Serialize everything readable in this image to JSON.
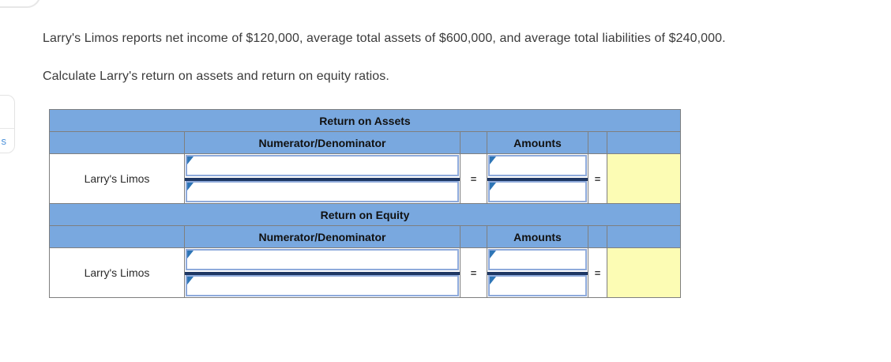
{
  "problem": {
    "line1": "Larry's Limos reports net income of $120,000, average total assets of $600,000, and average total liabilities of $240,000.",
    "line2": "Calculate Larry's return on assets and return on equity ratios."
  },
  "side_panel": {
    "visible_label": "s"
  },
  "worksheet": {
    "equals_sign": "=",
    "sections": [
      {
        "title": "Return on Assets",
        "header_numerator": "Numerator/Denominator",
        "header_amounts": "Amounts",
        "row_label": "Larry's Limos"
      },
      {
        "title": "Return on Equity",
        "header_numerator": "Numerator/Denominator",
        "header_amounts": "Amounts",
        "row_label": "Larry's Limos"
      }
    ]
  },
  "colors": {
    "header_blue": "#79a8df",
    "grid_gray": "#7f7f7f",
    "input_border_blue": "#8eaadb",
    "marker_blue": "#2e75b6",
    "fraction_bar_navy": "#1f3864",
    "answer_yellow": "#fcfcb4",
    "side_link_blue": "#4a90d9",
    "text_dark": "#3b3b3b"
  }
}
